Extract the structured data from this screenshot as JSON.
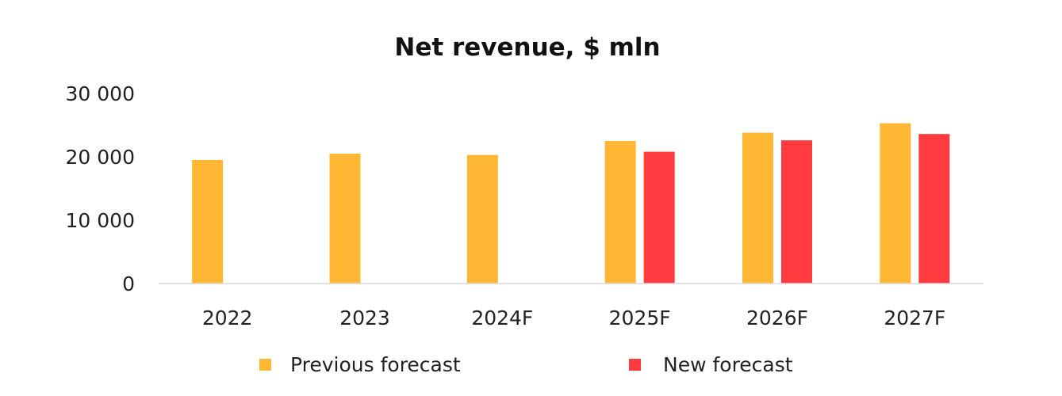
{
  "chart_data": {
    "type": "bar",
    "title": "Net revenue, $ mln",
    "xlabel": "",
    "ylabel": "",
    "ylim": [
      0,
      30000
    ],
    "yticks": [
      0,
      10000,
      20000,
      30000
    ],
    "ytick_labels": [
      "0",
      "10 000",
      "20 000",
      "30 000"
    ],
    "grid": false,
    "legend_position": "bottom",
    "categories": [
      "2022",
      "2023",
      "2024F",
      "2025F",
      "2026F",
      "2027F"
    ],
    "series": [
      {
        "name": "Previous forecast",
        "color": "#FFB734",
        "values": [
          19500,
          20500,
          20300,
          22500,
          23800,
          25300
        ]
      },
      {
        "name": "New forecast",
        "color": "#FF3B3F",
        "values": [
          null,
          null,
          null,
          20800,
          22600,
          23600
        ]
      }
    ]
  }
}
